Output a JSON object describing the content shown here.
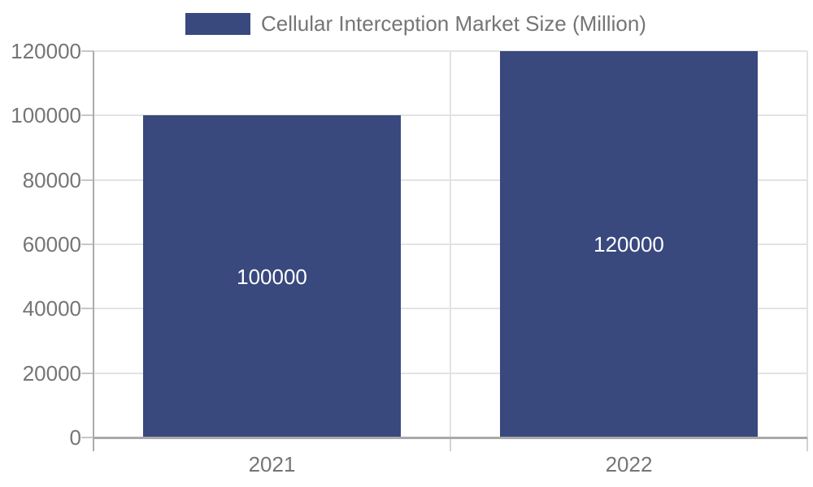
{
  "legend": {
    "label": "Cellular Interception Market Size (Million)"
  },
  "chart_data": {
    "type": "bar",
    "title": "",
    "categories": [
      "2021",
      "2022"
    ],
    "series": [
      {
        "name": "Cellular Interception Market Size (Million)",
        "values": [
          100000,
          120000
        ],
        "color": "#39497E"
      }
    ],
    "bar_value_labels": [
      "100000",
      "120000"
    ],
    "yticks": [
      "0",
      "20000",
      "40000",
      "60000",
      "80000",
      "100000",
      "120000"
    ],
    "ylim": [
      0,
      120000
    ],
    "grid": true,
    "legend_position": "top",
    "colors": {
      "bar": "#39497E",
      "value_label": "#ffffff",
      "axis_text": "#757575",
      "gridline": "#e3e3e3",
      "axis_line": "#ababab",
      "background": "#ffffff"
    }
  }
}
